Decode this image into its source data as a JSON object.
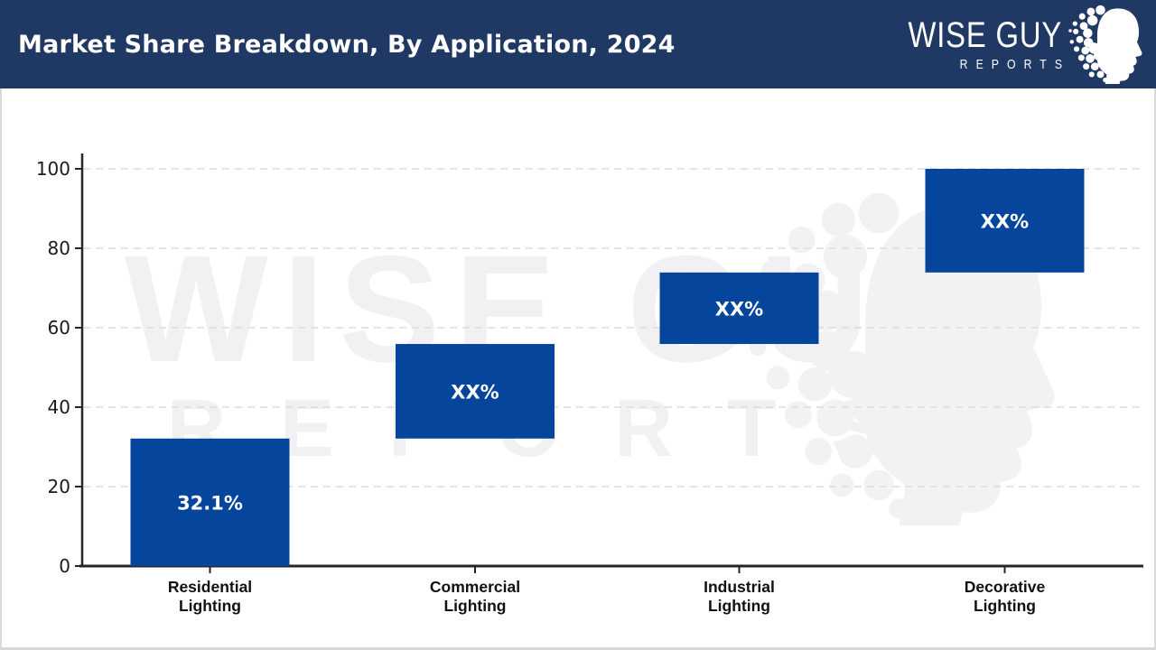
{
  "header": {
    "title": "Market Share Breakdown, By Application, 2024",
    "logo": {
      "brand": "WISE GUY",
      "sub": "REPORTS"
    }
  },
  "watermark": {
    "brand": "WISE GUY",
    "sub": "REPORTS"
  },
  "chart_data": {
    "type": "bar",
    "variant": "waterfall-floating-bars",
    "title": "Market Share Breakdown, By Application, 2024",
    "categories": [
      "Residential Lighting",
      "Commercial Lighting",
      "Industrial Lighting",
      "Decorative Lighting"
    ],
    "segments": [
      {
        "label": "32.1%",
        "start": 0,
        "end": 32.1
      },
      {
        "label": "XX%",
        "start": 32.1,
        "end": 55.9
      },
      {
        "label": "XX%",
        "start": 55.9,
        "end": 73.9
      },
      {
        "label": "XX%",
        "start": 73.9,
        "end": 100
      }
    ],
    "yticks": [
      0,
      20,
      40,
      60,
      80,
      100
    ],
    "ylim": [
      0,
      104
    ],
    "xlabel": "",
    "ylabel": "",
    "legend": "none",
    "grid": "horizontal-dashed",
    "bar_color": "#05459b",
    "bar_label_color": "#ffffff",
    "grid_color": "#dcdcdc",
    "axis_color": "#262626",
    "tick_label_color": "#1a1a1a",
    "header_color": "#1f3864"
  }
}
